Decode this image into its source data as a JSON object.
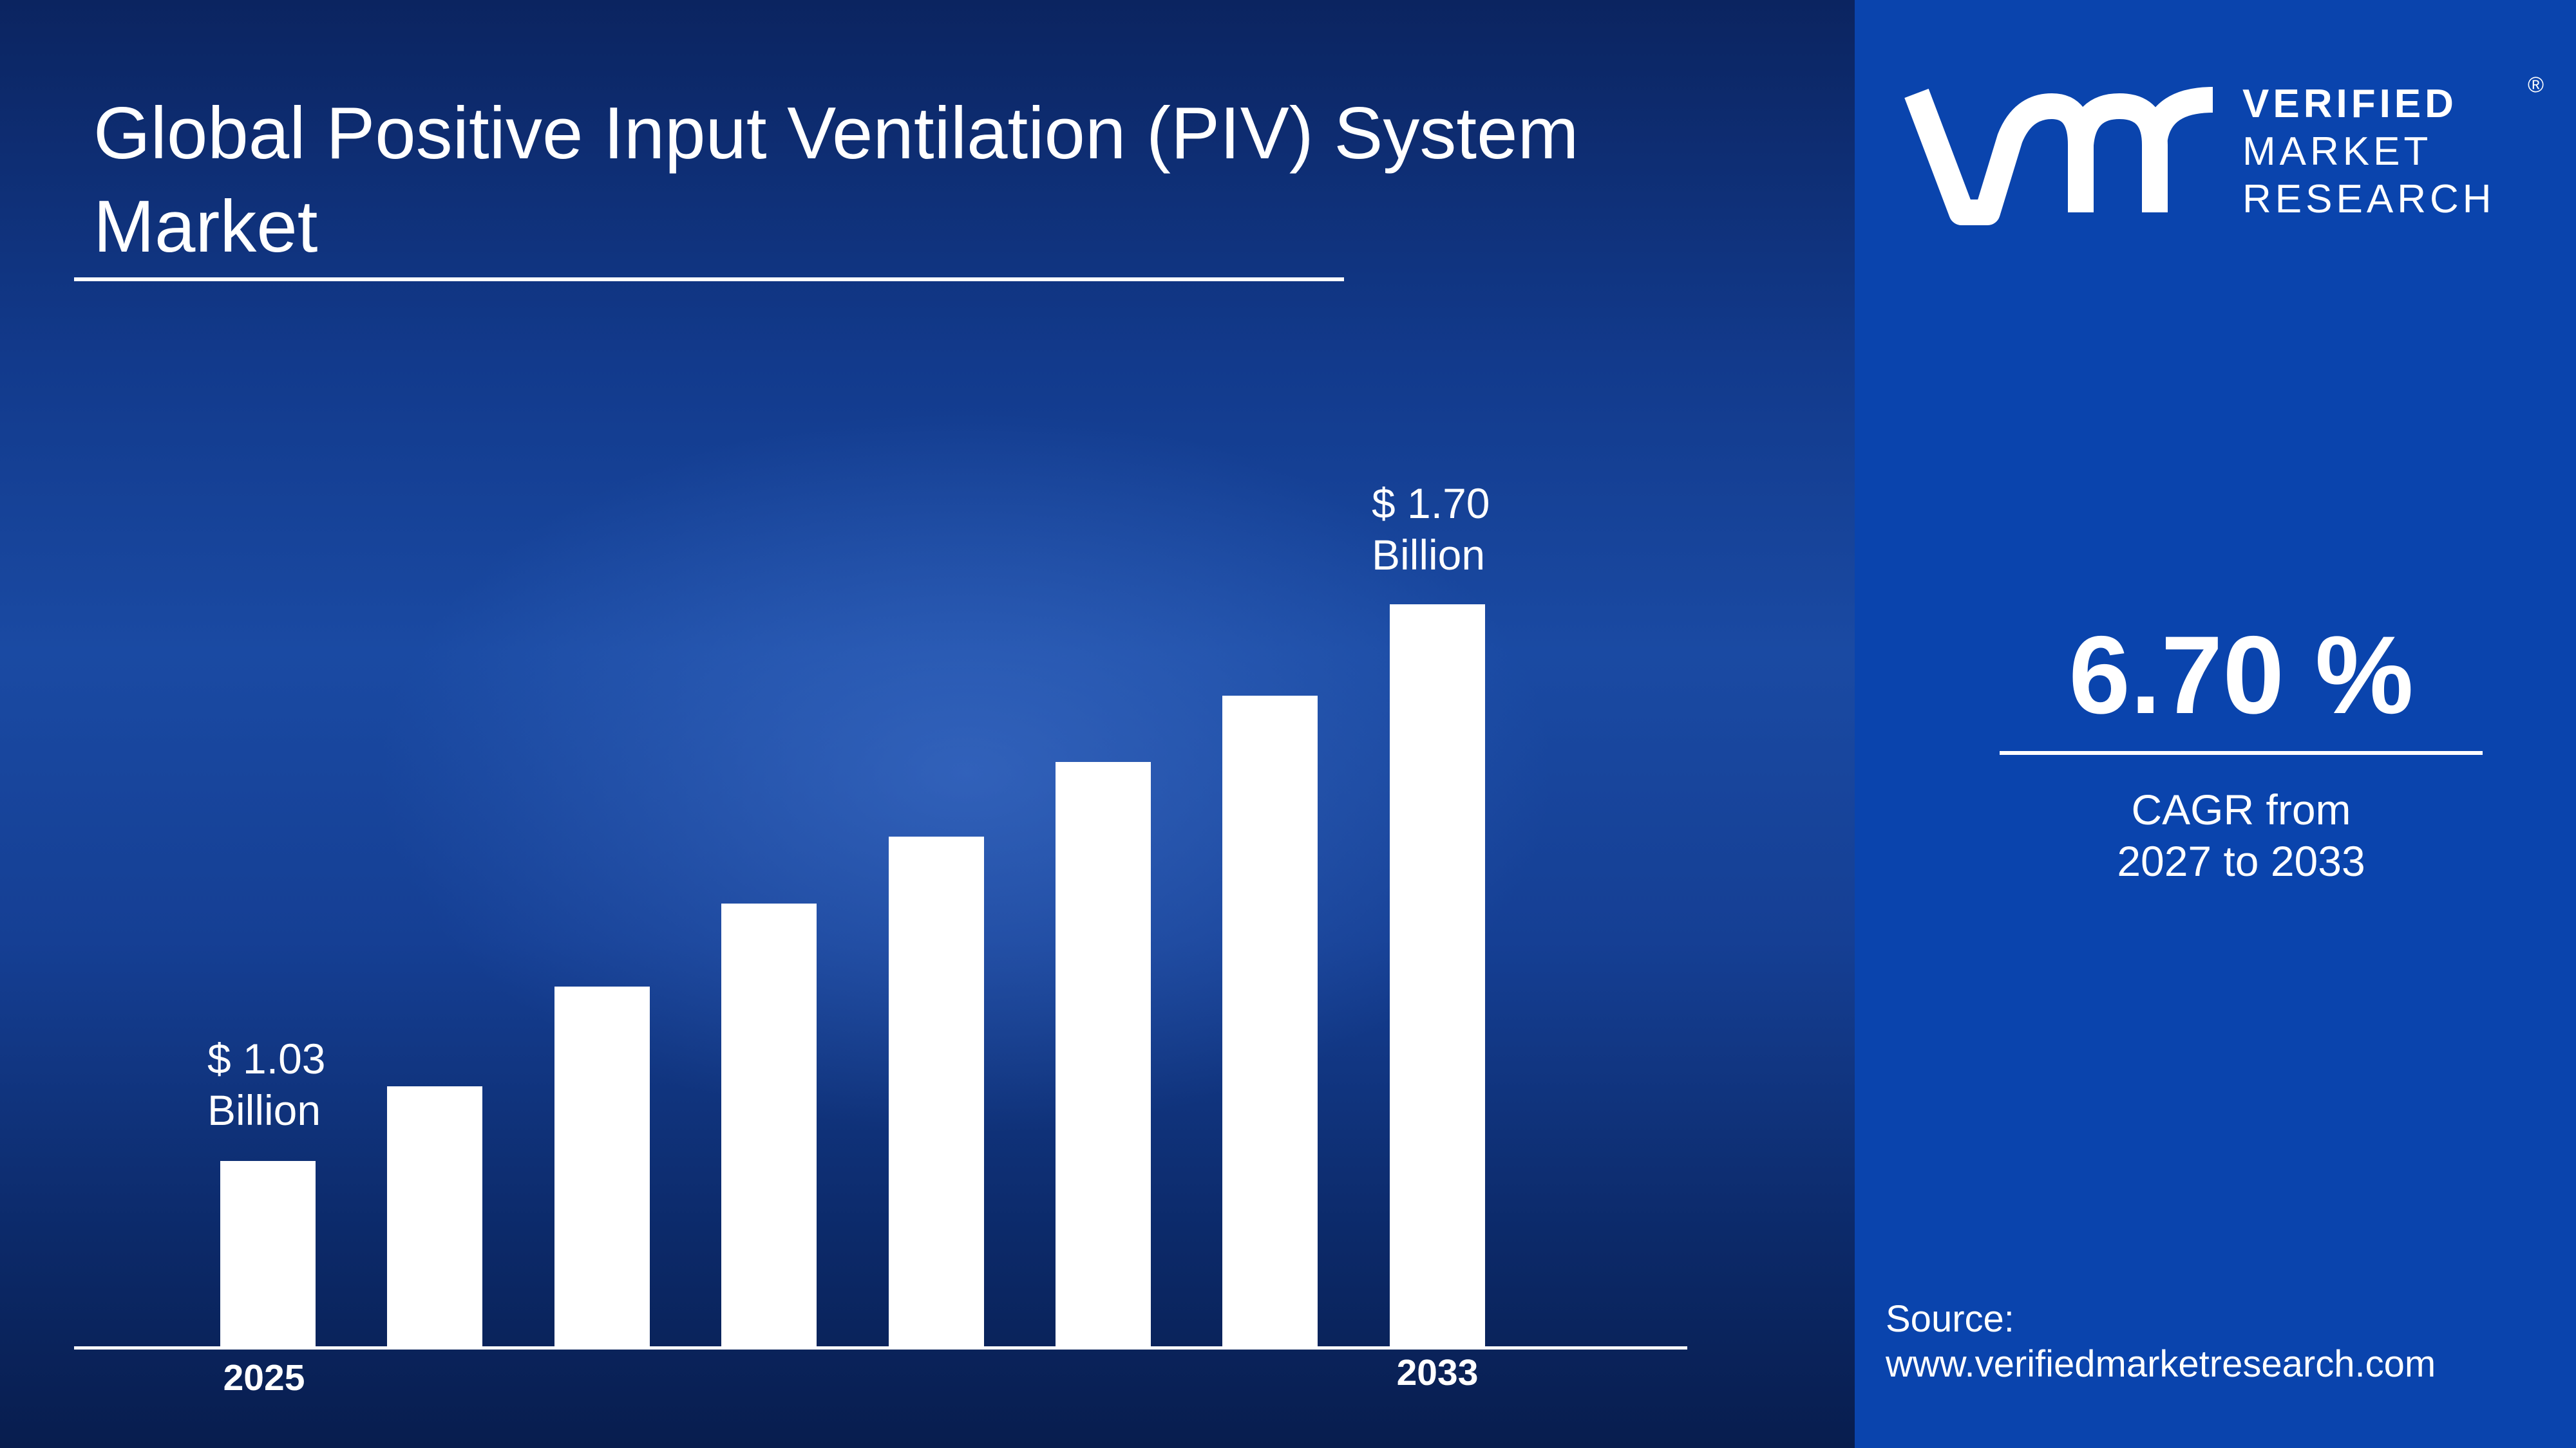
{
  "title_line1": "Global Positive Input Ventilation (PIV) System",
  "title_line2": "Market",
  "chart_data": {
    "type": "bar",
    "title": "Global Positive Input Ventilation (PIV) System Market",
    "categories": [
      "2025",
      "",
      "",
      "",
      "",
      "",
      "",
      "2033"
    ],
    "values": [
      1.03,
      1.12,
      1.24,
      1.34,
      1.42,
      1.51,
      1.59,
      1.7
    ],
    "unit": "USD Billion",
    "data_labels": [
      {
        "index": 0,
        "line1": "$ 1.03",
        "line2": "Billion"
      },
      {
        "index": 7,
        "line1": "$ 1.70",
        "line2": "Billion"
      }
    ],
    "xlabel": "",
    "ylabel": "",
    "grid": false,
    "bar_color": "#ffffff"
  },
  "cagr": {
    "value": "6.70 %",
    "line1": "CAGR from",
    "line2": "2027 to 2033"
  },
  "source": {
    "label": "Source:",
    "url": "www.verifiedmarketresearch.com"
  },
  "logo": {
    "text": [
      "VERIFIED",
      "MARKET",
      "RESEARCH"
    ],
    "mark": "®"
  },
  "colors": {
    "right_panel": "#0a44ad",
    "background_dark": "#0b2460",
    "text": "#ffffff"
  }
}
